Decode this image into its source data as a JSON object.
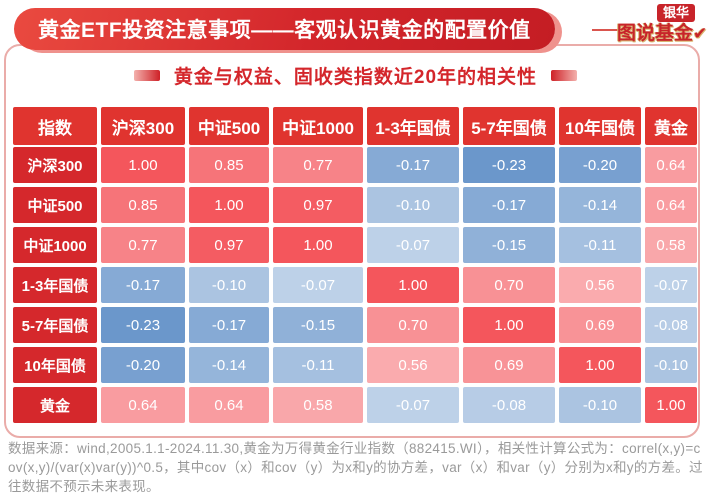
{
  "header": {
    "title": "黄金ETF投资注意事项——客观认识黄金的配置价值",
    "logo": {
      "brand_top": "银华",
      "brand_bottom": "图说基金",
      "check_mark": "✔"
    }
  },
  "colors": {
    "accent_red": "#d4262b",
    "table_header_bg": "#e0342f",
    "row_header_bg": "#d5282c",
    "frame_border": "#eaaca9",
    "footer_text": "#9a9a9a"
  },
  "chart_data": {
    "type": "heatmap",
    "title": "黄金与权益、固收类指数近20年的相关性",
    "corner_label": "指数",
    "columns": [
      "沪深300",
      "中证500",
      "中证1000",
      "1-3年国债",
      "5-7年国债",
      "10年国债",
      "黄金"
    ],
    "rows": [
      "沪深300",
      "中证500",
      "中证1000",
      "1-3年国债",
      "5-7年国债",
      "10年国债",
      "黄金"
    ],
    "values": [
      [
        1.0,
        0.85,
        0.77,
        -0.17,
        -0.23,
        -0.2,
        0.64
      ],
      [
        0.85,
        1.0,
        0.97,
        -0.1,
        -0.17,
        -0.14,
        0.64
      ],
      [
        0.77,
        0.97,
        1.0,
        -0.07,
        -0.15,
        -0.11,
        0.58
      ],
      [
        -0.17,
        -0.1,
        -0.07,
        1.0,
        0.7,
        0.56,
        -0.07
      ],
      [
        -0.23,
        -0.17,
        -0.15,
        0.7,
        1.0,
        0.69,
        -0.08
      ],
      [
        -0.2,
        -0.14,
        -0.11,
        0.56,
        0.69,
        1.0,
        -0.1
      ],
      [
        0.64,
        0.64,
        0.58,
        -0.07,
        -0.08,
        -0.1,
        1.0
      ]
    ],
    "value_decimals": 2,
    "layout": {
      "value_range": [
        -0.23,
        1.0
      ],
      "positive_color": "#f4565c",
      "negative_color": "#6b97cb",
      "positive_gamma": 1.2,
      "negative_gamma": 0.68,
      "grid_gap_color": "#ffffff",
      "cell_text_color": "#ffffff",
      "legend": "none"
    }
  },
  "footer": {
    "source_note": "数据来源：wind,2005.1.1-2024.11.30,黄金为万得黄金行业指数（882415.WI），相关性计算公式为：correl(x,y)=cov(x,y)/(var(x)var(y))^0.5，其中cov（x）和cov（y）为x和y的协方差，var（x）和var（y）分别为x和y的方差。过往数据不预示未来表现。"
  }
}
